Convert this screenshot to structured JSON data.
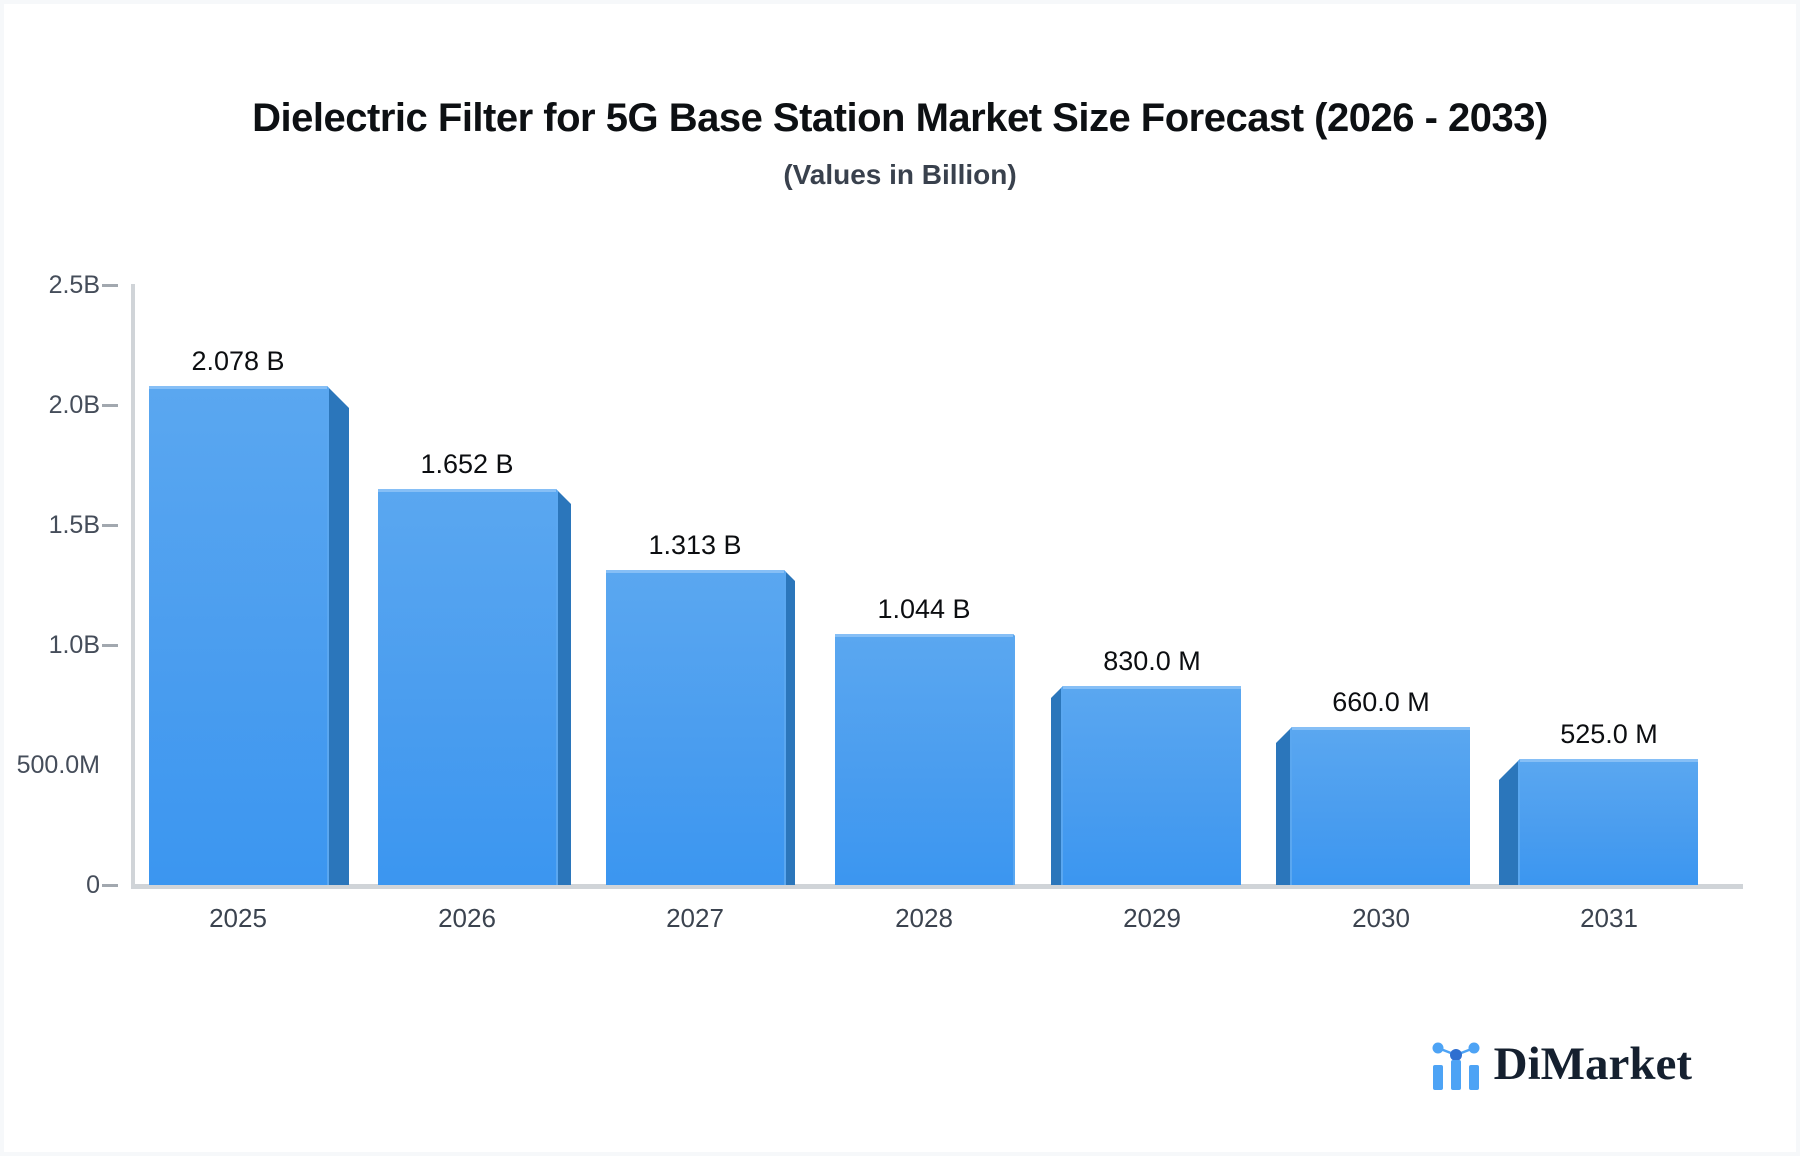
{
  "header": {
    "title": "Dielectric Filter for 5G Base Station Market Size Forecast (2026 - 2033)",
    "subtitle": "(Values in Billion)"
  },
  "chart_data": {
    "type": "bar",
    "title": "Dielectric Filter for 5G Base Station Market Size Forecast (2026 - 2033)",
    "subtitle": "(Values in Billion)",
    "categories": [
      "2025",
      "2026",
      "2027",
      "2028",
      "2029",
      "2030",
      "2031"
    ],
    "values": [
      2.078,
      1.652,
      1.313,
      1.044,
      0.83,
      0.66,
      0.525
    ],
    "value_labels": [
      "2.078 B",
      "1.652 B",
      "1.313 B",
      "1.044 B",
      "830.0 M",
      "660.0 M",
      "525.0 M"
    ],
    "ylim": [
      0,
      2.5
    ],
    "grid": "off",
    "legend": "none",
    "y_axis": {
      "ticks": [
        {
          "label": "2.5B",
          "value": 2.5,
          "dash": true
        },
        {
          "label": "2.0B",
          "value": 2.0,
          "dash": true
        },
        {
          "label": "1.5B",
          "value": 1.5,
          "dash": true
        },
        {
          "label": "1.0B",
          "value": 1.0,
          "dash": true
        },
        {
          "label": "500.0M",
          "value": 0.5,
          "dash": false
        },
        {
          "label": "0",
          "value": 0,
          "dash": true
        }
      ]
    },
    "colors": {
      "bar_face_top": "#5aa7f0",
      "bar_face_bottom": "#3b96f0",
      "bar_side": "#2b76bb",
      "axis": "#d0d4d8",
      "label_text": "#0c0e11"
    }
  },
  "branding": {
    "logo_text": "DiMarket",
    "logo_icon": "mini-bar-chart-icon",
    "logo_icon_color": "#4da3f5",
    "logo_icon_accent": "#2f6fd0",
    "logo_text_color": "#15202f"
  }
}
